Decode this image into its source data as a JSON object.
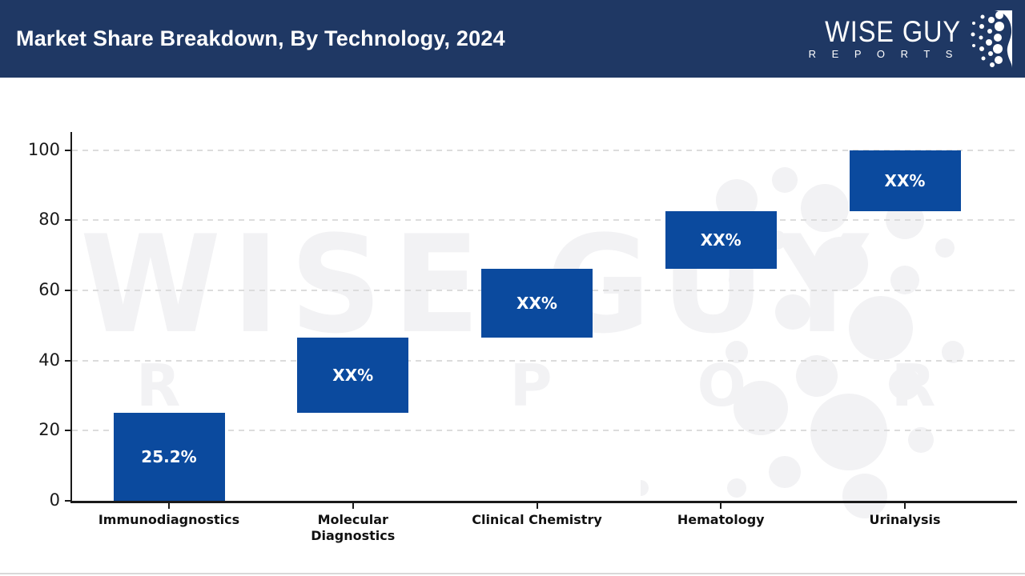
{
  "header": {
    "title": "Market Share Breakdown, By Technology, 2024",
    "bg_color": "#1f3864",
    "logo": {
      "line1": "WISE GUY",
      "line2": "R E P O R T S",
      "icon": "dotted-head-profile"
    }
  },
  "watermark": {
    "line1": "WISE GUY",
    "line2": "R E P O R T S",
    "color": "#f2f2f4"
  },
  "chart_data": {
    "type": "bar",
    "subtype": "waterfall",
    "title": "Market Share Breakdown, By Technology, 2024",
    "xlabel": "",
    "ylabel": "",
    "ylim": [
      0,
      100
    ],
    "yticks": [
      0,
      20,
      40,
      60,
      80,
      100
    ],
    "grid": "horizontal-dashed",
    "legend": "none",
    "bar_color": "#0b4a9e",
    "bar_label_color": "#ffffff",
    "categories": [
      "Immunodiagnostics",
      "Molecular Diagnostics",
      "Clinical Chemistry",
      "Hematology",
      "Urinalysis"
    ],
    "tick_labels": [
      "Immunodiagnostics",
      "Molecular\nDiagnostics",
      "Clinical Chemistry",
      "Hematology",
      "Urinalysis"
    ],
    "segments": [
      {
        "category": "Immunodiagnostics",
        "start": 0,
        "end": 25.2,
        "value": 25.2,
        "label": "25.2%"
      },
      {
        "category": "Molecular Diagnostics",
        "start": 25.2,
        "end": 46.5,
        "value": 21.3,
        "label": "XX%"
      },
      {
        "category": "Clinical Chemistry",
        "start": 46.5,
        "end": 66.1,
        "value": 19.6,
        "label": "XX%"
      },
      {
        "category": "Hematology",
        "start": 66.1,
        "end": 82.6,
        "value": 16.5,
        "label": "XX%"
      },
      {
        "category": "Urinalysis",
        "start": 82.6,
        "end": 100,
        "value": 17.4,
        "label": "XX%"
      }
    ]
  }
}
